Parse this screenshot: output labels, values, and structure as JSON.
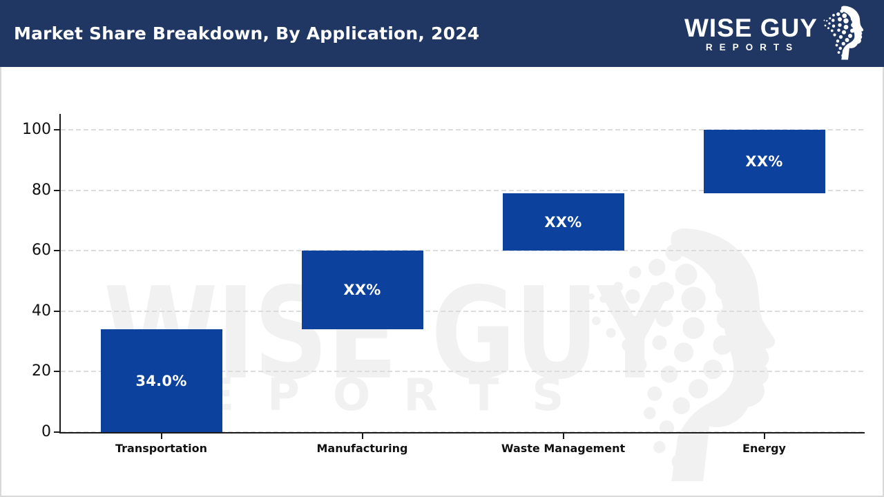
{
  "header": {
    "title": "Market Share Breakdown, By Application, 2024",
    "brand": {
      "line1": "WISE GUY",
      "line2": "REPORTS"
    }
  },
  "watermark": {
    "line1": "WISE GUY",
    "line2": "REPORTS"
  },
  "colors": {
    "header_bg": "#203764",
    "bar_blue": "#0c419e",
    "grid_gray": "#dcdcdc",
    "axis_black": "#1a1a1a",
    "watermark_gray": "#f1f1f1",
    "border_gray": "#d9d9d9",
    "bar_label_text": "#ffffff",
    "title_text": "#ffffff"
  },
  "chart_data": {
    "type": "bar",
    "subtype": "waterfall",
    "title": "Market Share Breakdown, By Application, 2024",
    "xlabel": "",
    "ylabel": "",
    "categories": [
      "Transportation",
      "Manufacturing",
      "Waste Management",
      "Energy"
    ],
    "segments": [
      {
        "category": "Transportation",
        "start": 0,
        "end": 34,
        "value": 34,
        "label": "34.0%"
      },
      {
        "category": "Manufacturing",
        "start": 34,
        "end": 60,
        "value": 26,
        "label": "XX%"
      },
      {
        "category": "Waste Management",
        "start": 60,
        "end": 79,
        "value": 19,
        "label": "XX%"
      },
      {
        "category": "Energy",
        "start": 79,
        "end": 100,
        "value": 21,
        "label": "XX%"
      }
    ],
    "yticks": [
      0,
      20,
      40,
      60,
      80,
      100
    ],
    "ylim": [
      0,
      100
    ],
    "grid": "dashed-horizontal",
    "legend": "none"
  }
}
